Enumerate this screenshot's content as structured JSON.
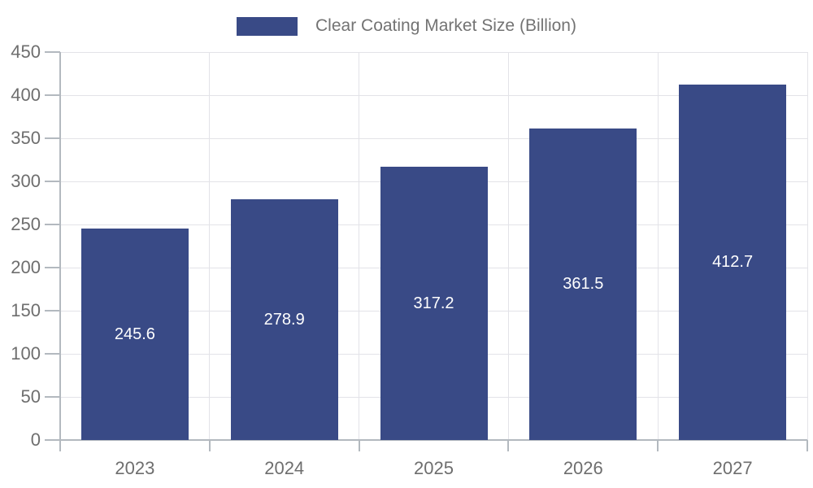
{
  "chart_data": {
    "type": "bar",
    "title": "Clear Coating Market Size (Billion)",
    "legend": [
      "Clear Coating Market Size (Billion)"
    ],
    "legend_position": "top-center",
    "categories": [
      "2023",
      "2024",
      "2025",
      "2026",
      "2027"
    ],
    "values": [
      245.6,
      278.9,
      317.2,
      361.5,
      412.7
    ],
    "data_labels_shown": true,
    "xlabel": "",
    "ylabel": "",
    "ylim": [
      0,
      450
    ],
    "yticks": [
      0,
      50,
      100,
      150,
      200,
      250,
      300,
      350,
      400,
      450
    ],
    "grid": true,
    "colors": {
      "bar": "#394a86",
      "bar_value_text": "#ffffff",
      "gridline": "#e3e3e8",
      "axis": "#b3b9bf",
      "tick_text": "#6e6e6e",
      "legend_text": "#737373",
      "background": "#ffffff"
    }
  }
}
